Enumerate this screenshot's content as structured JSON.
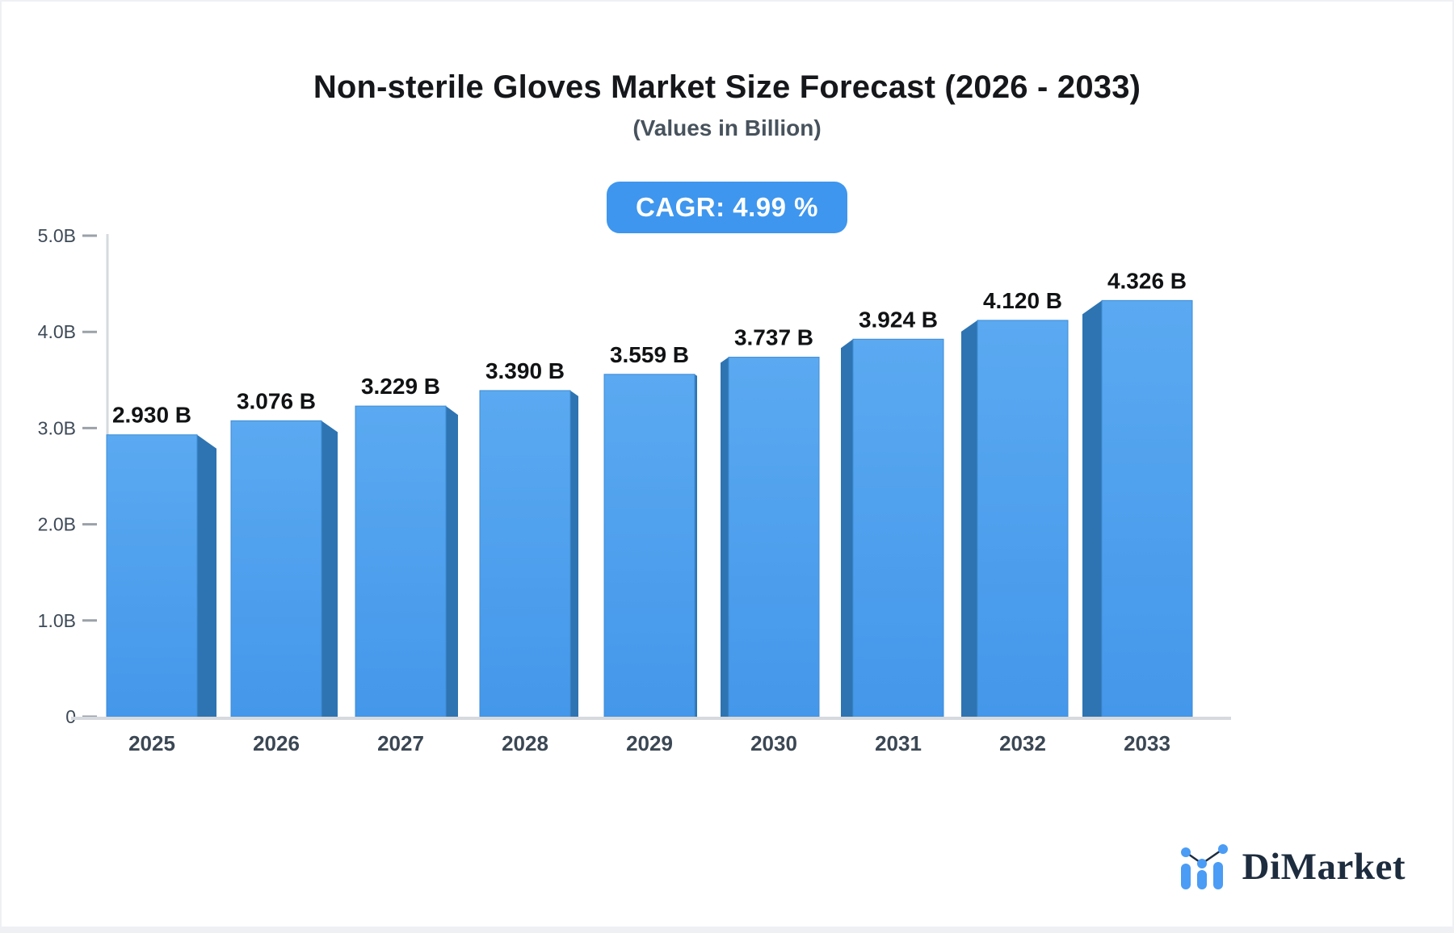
{
  "header": {
    "title": "Non-sterile Gloves Market Size Forecast (2026 - 2033)",
    "subtitle": "(Values in Billion)",
    "cagr_label": "CAGR: 4.99 %"
  },
  "chart_data": {
    "type": "bar",
    "title": "Non-sterile Gloves Market Size Forecast (2026 - 2033)",
    "subtitle": "(Values in Billion)",
    "unit": "Billion",
    "cagr": "4.99%",
    "categories": [
      "2025",
      "2026",
      "2027",
      "2028",
      "2029",
      "2030",
      "2031",
      "2032",
      "2033"
    ],
    "values": [
      2.93,
      3.076,
      3.229,
      3.39,
      3.559,
      3.737,
      3.924,
      4.12,
      4.326
    ],
    "labels": [
      "2.930 B",
      "3.076 B",
      "3.229 B",
      "3.390 B",
      "3.559 B",
      "3.737 B",
      "3.924 B",
      "4.120 B",
      "4.326 B"
    ],
    "y_ticks": [
      {
        "label": "0",
        "v": 0
      },
      {
        "label": "1.0B",
        "v": 1
      },
      {
        "label": "2.0B",
        "v": 2
      },
      {
        "label": "3.0B",
        "v": 3
      },
      {
        "label": "4.0B",
        "v": 4
      },
      {
        "label": "5.0B",
        "v": 5
      }
    ],
    "ylim": [
      0,
      5
    ],
    "grid": false,
    "legend": false,
    "colors": {
      "bar_front_top": "#5aa9f1",
      "bar_front_bottom": "#4497ea",
      "bar_side": "#2e74b2",
      "badge_blue": "#3e96ee",
      "axis_gray": "#d6d9dd",
      "tick_gray": "#9aa1a9"
    }
  },
  "footer": {
    "brand": "DiMarket"
  }
}
